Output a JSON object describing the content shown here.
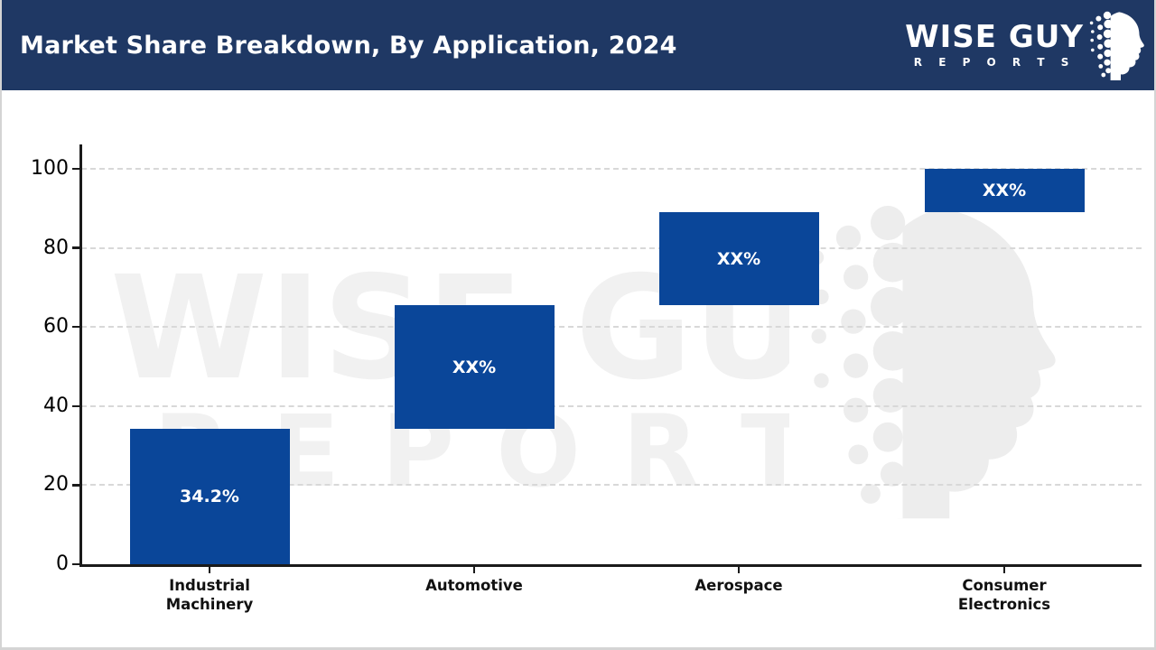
{
  "header": {
    "title": "Market Share Breakdown, By Application, 2024",
    "logo": {
      "name": "WISE GUY",
      "sub": "R E P O R T S"
    }
  },
  "watermark": {
    "line1": "WISE GUY",
    "line2": "R E P O R T S"
  },
  "chart_data": {
    "type": "bar",
    "subtype": "waterfall",
    "title": "Market Share Breakdown, By Application, 2024",
    "categories": [
      "Industrial Machinery",
      "Automotive",
      "Aerospace",
      "Consumer Electronics"
    ],
    "segments": [
      {
        "category": "Industrial Machinery",
        "start": 0,
        "end": 34.2,
        "label": "34.2%"
      },
      {
        "category": "Automotive",
        "start": 34.2,
        "end": 65.5,
        "label": "XX%"
      },
      {
        "category": "Aerospace",
        "start": 65.5,
        "end": 89,
        "label": "XX%"
      },
      {
        "category": "Consumer Electronics",
        "start": 89,
        "end": 100,
        "label": "XX%"
      }
    ],
    "xlabel": "",
    "ylabel": "",
    "ylim": [
      0,
      100
    ],
    "yticks": [
      0,
      20,
      40,
      60,
      80,
      100
    ],
    "grid": "horizontal-dashed",
    "legend": "none",
    "bar_color": "#0a4699",
    "bar_label_color": "#ffffff",
    "axis_color": "#1a1a1a",
    "grid_color": "#d8d8d8"
  }
}
